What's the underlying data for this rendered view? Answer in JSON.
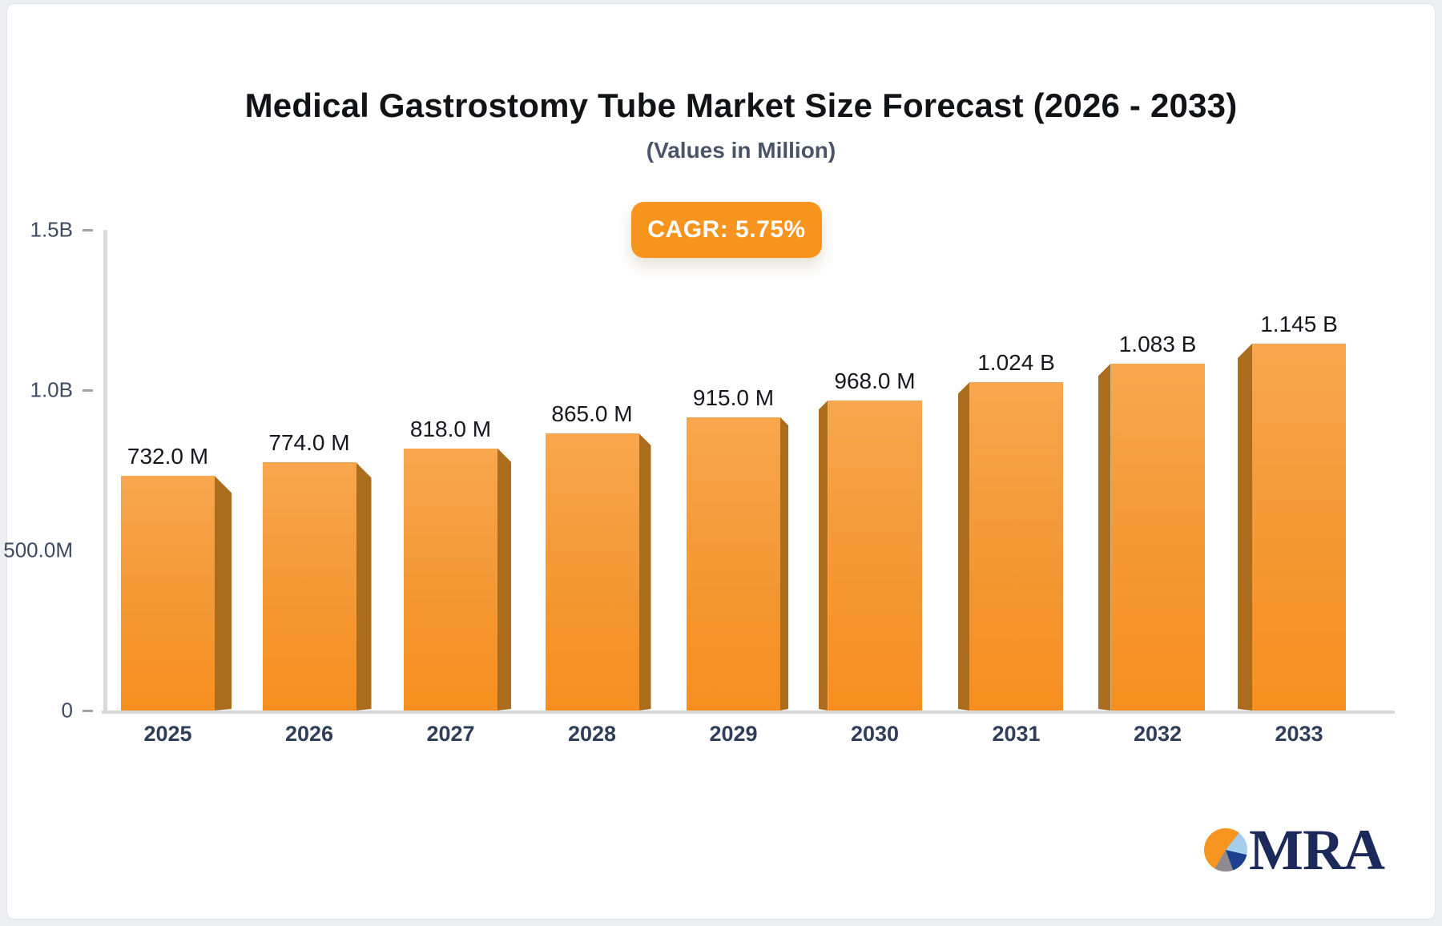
{
  "header": {
    "title": "Medical Gastrostomy Tube Market Size Forecast (2026 - 2033)",
    "subtitle": "(Values in Million)"
  },
  "badge": {
    "label": "CAGR: 5.75%",
    "bg": "#f7941e"
  },
  "chart_data": {
    "type": "bar",
    "title": "Medical Gastrostomy Tube Market Size Forecast (2026 - 2033)",
    "subtitle": "(Values in Million)",
    "xlabel": "",
    "ylabel": "",
    "categories": [
      "2025",
      "2026",
      "2027",
      "2028",
      "2029",
      "2030",
      "2031",
      "2032",
      "2033"
    ],
    "values_millions": [
      732,
      774,
      818,
      865,
      915,
      968,
      1024,
      1083,
      1145
    ],
    "value_labels": [
      "732.0 M",
      "774.0 M",
      "818.0 M",
      "865.0 M",
      "915.0 M",
      "968.0 M",
      "1.024 B",
      "1.083 B",
      "1.145 B"
    ],
    "ylim": [
      0,
      1500
    ],
    "y_ticks": [
      {
        "label": "1.5B",
        "value": 1500,
        "dash": true
      },
      {
        "label": "1.0B",
        "value": 1000,
        "dash": true
      },
      {
        "label": "500.0M",
        "value": 500,
        "dash": false
      },
      {
        "label": "0",
        "value": 0,
        "dash": true
      }
    ],
    "grid": false,
    "legend": "none",
    "bar_color_top": "#f7a74f",
    "bar_color_bottom": "#f68f1f",
    "bar_side_color": "#ac6c1e",
    "cagr_annotation": "CAGR: 5.75%"
  },
  "logo": {
    "text": "MRA",
    "pie_colors": [
      "#f6951f",
      "#a5ceec",
      "#1e3e8e",
      "#8d8b90"
    ],
    "text_color": "#1b2a5a"
  }
}
